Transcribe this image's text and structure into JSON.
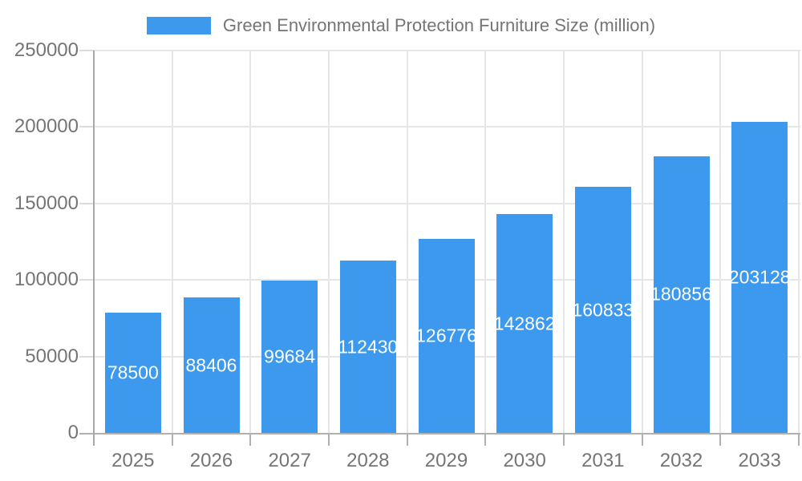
{
  "legend": {
    "label": "Green Environmental Protection Furniture Size (million)"
  },
  "colors": {
    "bar": "#3C99ED",
    "grid": "#e6e6e6",
    "y_axis": "#a8a8a8",
    "x_axis": "#b0b0b0",
    "y_tick": "#dcdcdc",
    "axis_label": "#757575",
    "value_label": "#ffffff"
  },
  "chart_data": {
    "type": "bar",
    "title": "Green Environmental Protection Furniture Size (million)",
    "categories": [
      "2025",
      "2026",
      "2027",
      "2028",
      "2029",
      "2030",
      "2031",
      "2032",
      "2033"
    ],
    "values": [
      78500,
      88406,
      99684,
      112430,
      126776,
      142862,
      160833,
      180856,
      203128
    ],
    "xlabel": "",
    "ylabel": "",
    "ylim": [
      0,
      250000
    ],
    "yticks": [
      0,
      50000,
      100000,
      150000,
      200000,
      250000
    ],
    "ytick_labels": [
      "0",
      "50000",
      "100000",
      "150000",
      "200000",
      "250000"
    ],
    "grid": true,
    "legend_position": "top",
    "value_label_position": "inside-center"
  }
}
